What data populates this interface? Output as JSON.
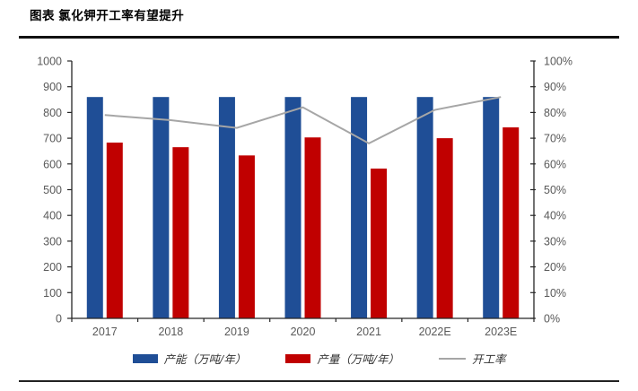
{
  "page": {
    "title": "图表 氯化钾开工率有望提升"
  },
  "chart_data": {
    "type": "bar",
    "subtype": "grouped-bars-with-line",
    "title": "氯化钾开工率有望提升",
    "categories": [
      "2017",
      "2018",
      "2019",
      "2020",
      "2021",
      "2022E",
      "2023E"
    ],
    "series": [
      {
        "name": "产能（万吨/年）",
        "type": "bar",
        "axis": "left",
        "color": "#1F4E96",
        "values": [
          860,
          860,
          860,
          860,
          860,
          860,
          860
        ]
      },
      {
        "name": "产量（万吨/年）",
        "type": "bar",
        "axis": "left",
        "color": "#C00000",
        "values": [
          683,
          665,
          633,
          703,
          582,
          700,
          742
        ]
      },
      {
        "name": "开工率",
        "type": "line",
        "axis": "right",
        "color": "#A6A6A6",
        "values_pct": [
          79,
          77,
          74,
          82,
          68,
          81,
          86
        ]
      }
    ],
    "left_axis": {
      "min": 0,
      "max": 1000,
      "step": 100,
      "tick_labels": [
        "0",
        "100",
        "200",
        "300",
        "400",
        "500",
        "600",
        "700",
        "800",
        "900",
        "1000"
      ]
    },
    "right_axis": {
      "min_pct": 0,
      "max_pct": 100,
      "step_pct": 10,
      "tick_labels": [
        "0%",
        "10%",
        "20%",
        "30%",
        "40%",
        "50%",
        "60%",
        "70%",
        "80%",
        "90%",
        "100%"
      ]
    },
    "grid": false,
    "legend_position": "bottom",
    "axis_text_color": "#595959",
    "axis_line_color": "#262626"
  }
}
